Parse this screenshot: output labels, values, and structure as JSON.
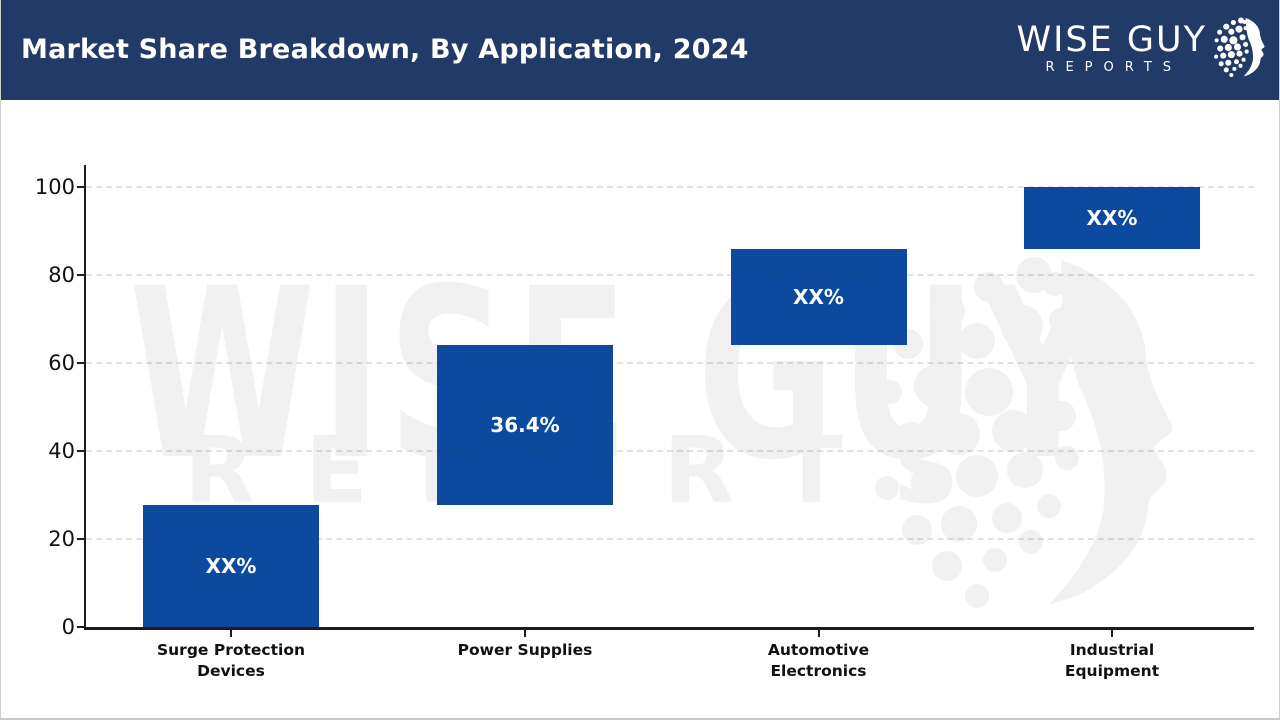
{
  "header": {
    "title": "Market Share Breakdown, By Application, 2024",
    "logo": {
      "line1": "WISE GUY",
      "line2": "REPORTS"
    }
  },
  "watermark": {
    "line1": "WISE GUY",
    "line2": "REPORTS"
  },
  "colors": {
    "header_bg": "#213a67",
    "bar": "#0b4a9e",
    "bar_label": "#ffffff",
    "axis": "#1c1c1c",
    "gridline": "#e0e0e0",
    "watermark": "#f1f1f2"
  },
  "chart_data": {
    "type": "bar",
    "subtype": "waterfall",
    "title": "Market Share Breakdown, By Application, 2024",
    "xlabel": "",
    "ylabel": "",
    "ylim": [
      0,
      100
    ],
    "yticks": [
      0,
      20,
      40,
      60,
      80,
      100
    ],
    "grid": "dashed-horizontal",
    "legend": "none",
    "categories": [
      "Surge Protection Devices",
      "Power Supplies",
      "Automotive Electronics",
      "Industrial Equipment"
    ],
    "category_lines": [
      [
        "Surge Protection",
        "Devices"
      ],
      [
        "Power Supplies"
      ],
      [
        "Automotive",
        "Electronics"
      ],
      [
        "Industrial",
        "Equipment"
      ]
    ],
    "segments": [
      {
        "category": "Surge Protection Devices",
        "start": 0,
        "end": 27.7,
        "value": 27.7,
        "label": "XX%"
      },
      {
        "category": "Power Supplies",
        "start": 27.7,
        "end": 64.1,
        "value": 36.4,
        "label": "36.4%"
      },
      {
        "category": "Automotive Electronics",
        "start": 64.1,
        "end": 85.8,
        "value": 21.7,
        "label": "XX%"
      },
      {
        "category": "Industrial Equipment",
        "start": 85.8,
        "end": 100,
        "value": 14.2,
        "label": "XX%"
      }
    ]
  }
}
